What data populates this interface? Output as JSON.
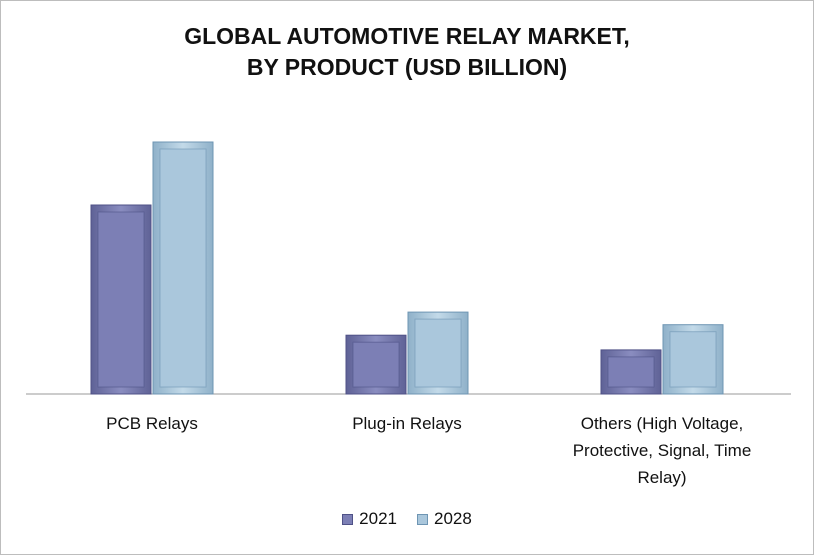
{
  "chart_data": {
    "type": "bar",
    "title": "GLOBAL AUTOMOTIVE RELAY MARKET,\nBY PRODUCT  (USD BILLION)",
    "categories": [
      "PCB Relays",
      "Plug-in Relays",
      "Others (High Voltage,\nProtective, Signal, Time\nRelay)"
    ],
    "series": [
      {
        "name": "2021",
        "values": [
          9.0,
          2.8,
          2.1
        ],
        "color": "#7c7fb5",
        "edge": "#4f5287"
      },
      {
        "name": "2028",
        "values": [
          12.0,
          3.9,
          3.3
        ],
        "color": "#aac7dc",
        "edge": "#6e95b3"
      }
    ],
    "ylim": [
      0,
      13
    ],
    "grid": false,
    "legend_position": "bottom"
  }
}
